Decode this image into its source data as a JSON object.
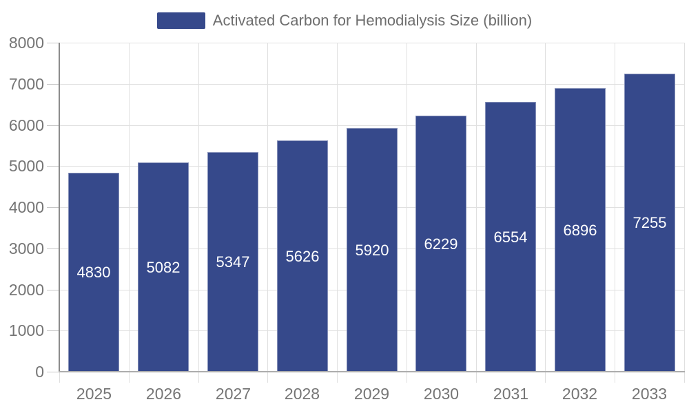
{
  "legend": {
    "label": "Activated Carbon for Hemodialysis Size (billion)"
  },
  "chart_data": {
    "type": "bar",
    "title": "Activated Carbon for Hemodialysis Size (billion)",
    "categories": [
      "2025",
      "2026",
      "2027",
      "2028",
      "2029",
      "2030",
      "2031",
      "2032",
      "2033"
    ],
    "values": [
      4830,
      5082,
      5347,
      5626,
      5920,
      6229,
      6554,
      6896,
      7255
    ],
    "xlabel": "",
    "ylabel": "",
    "ylim": [
      0,
      8000
    ],
    "yticks": [
      0,
      1000,
      2000,
      3000,
      4000,
      5000,
      6000,
      7000,
      8000
    ],
    "grid": true,
    "legend_position": "top",
    "value_labels": "inside-center"
  },
  "colors": {
    "bar": "#36498B",
    "bar_border": "rgba(255,255,255,0.40)",
    "grid": "#E0E0E0",
    "axis_y": "#8C8C8C",
    "axis_x": "#ADADAD",
    "tick": "#C6C6C6",
    "axis_text": "#757575",
    "legend_text": "#6E6E6E",
    "value_text": "#FFFFFF",
    "background": "#FFFFFF"
  }
}
